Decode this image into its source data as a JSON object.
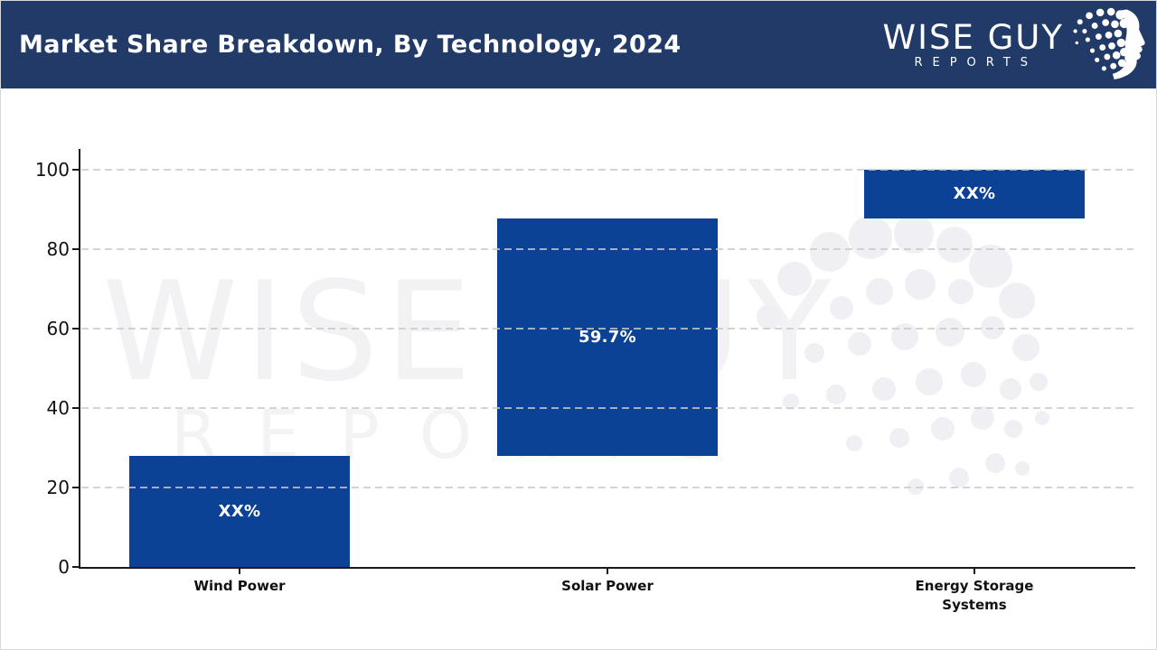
{
  "header": {
    "title": "Market Share Breakdown, By Technology, 2024",
    "bg_color": "#213A68",
    "logo": {
      "brand_top": "WISE GUY",
      "brand_bottom": "REPORTS"
    }
  },
  "watermark": {
    "brand_top": "WISE GUY",
    "brand_bottom": "REPORTS"
  },
  "colors": {
    "header_bg": "#213A68",
    "bar": "#0B4295",
    "bar_label": "#FFFFFF",
    "axis": "#1A1A1A",
    "grid": "#C9C9C9",
    "tick_label": "#111111",
    "watermark": "#F2F2F5"
  },
  "chart_data": {
    "type": "bar",
    "subtype": "waterfall",
    "title": "Market Share Breakdown, By Technology, 2024",
    "categories": [
      "Wind Power",
      "Solar Power",
      "Energy Storage Systems"
    ],
    "series": [
      {
        "name": "Market share (%)",
        "segments": [
          {
            "category": "Wind Power",
            "start": 0,
            "end": 28,
            "value_label": "XX%"
          },
          {
            "category": "Solar Power",
            "start": 28,
            "end": 87.7,
            "value_label": "59.7%"
          },
          {
            "category": "Energy Storage Systems",
            "start": 87.7,
            "end": 100,
            "value_label": "XX%"
          }
        ]
      }
    ],
    "xlabel": "",
    "ylabel": "",
    "yticks": [
      0,
      20,
      40,
      60,
      80,
      100
    ],
    "ylim": [
      0,
      105
    ],
    "grid": "horizontal-dashed",
    "legend": "none",
    "bar_labels_position": "center"
  }
}
